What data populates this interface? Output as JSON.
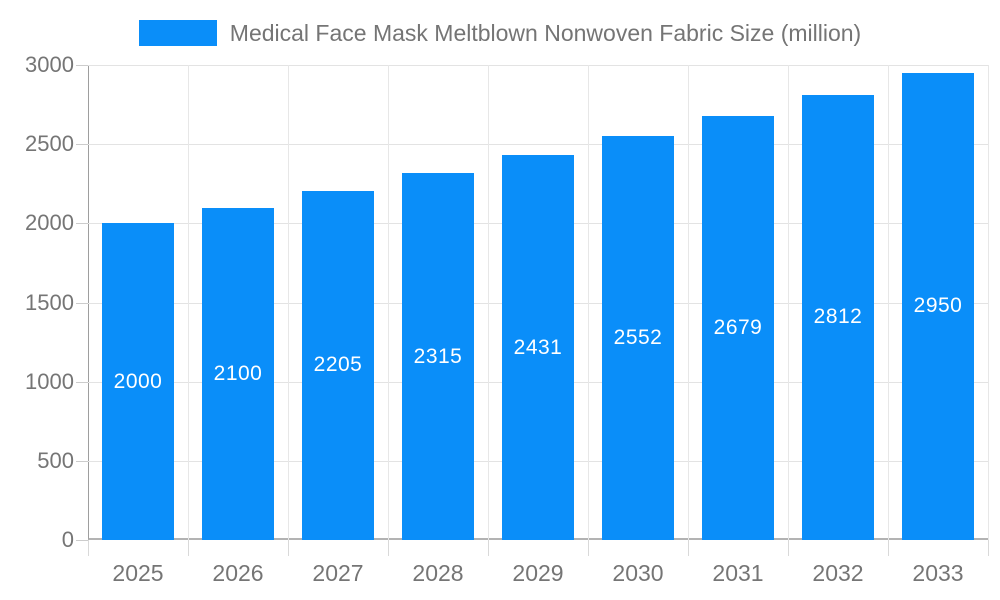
{
  "chart_data": {
    "type": "bar",
    "title": "Medical Face Mask Meltblown Nonwoven Fabric Size (million)",
    "legend": {
      "position": "top",
      "entries": [
        "Medical Face Mask Meltblown Nonwoven Fabric Size (million)"
      ]
    },
    "categories": [
      "2025",
      "2026",
      "2027",
      "2028",
      "2029",
      "2030",
      "2031",
      "2032",
      "2033"
    ],
    "values": [
      2000,
      2100,
      2205,
      2315,
      2431,
      2552,
      2679,
      2812,
      2950
    ],
    "value_labels_shown": true,
    "xlabel": "",
    "ylabel": "",
    "ylim": [
      0,
      3000
    ],
    "ytick_interval": 500,
    "yticks": [
      0,
      500,
      1000,
      1500,
      2000,
      2500,
      3000
    ],
    "grid": true,
    "colors": {
      "bar": "#0a8ef9",
      "value_label": "#ffffff",
      "tick_label": "#757575",
      "grid_line": "#e3e3e3",
      "y_axis_line": "#9e9e9e",
      "x_axis_line": "#b3b3b3"
    }
  }
}
